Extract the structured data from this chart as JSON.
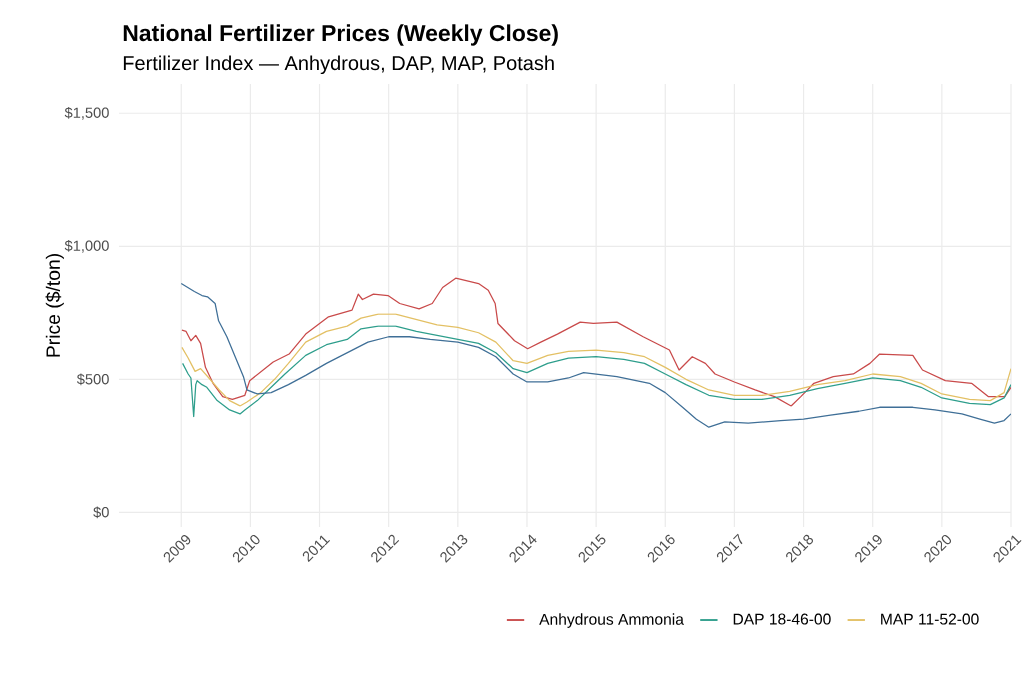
{
  "chart_data": {
    "type": "line",
    "title": "National Fertilizer Prices (Weekly Close)",
    "subtitle": "Fertilizer Index — Anhydrous, DAP, MAP, Potash",
    "ylabel": "Price ($/ton)",
    "xlim": [
      2008.1,
      2021.0
    ],
    "xticks": [
      2009,
      2010,
      2011,
      2012,
      2013,
      2014,
      2015,
      2016,
      2017,
      2018,
      2019,
      2020,
      2021
    ],
    "ylim": [
      -55,
      1610
    ],
    "yticks": [
      {
        "value": 0,
        "label": "$0"
      },
      {
        "value": 500,
        "label": "$500"
      },
      {
        "value": 1000,
        "label": "$1,000"
      },
      {
        "value": 1500,
        "label": "$1,500"
      }
    ],
    "grid": true,
    "legend": "bottom",
    "marker": "none",
    "series": [
      {
        "name": "Anhydrous Ammonia",
        "color": "#c94a4a",
        "x": [
          2009.01,
          2009.07,
          2009.14,
          2009.21,
          2009.28,
          2009.35,
          2009.46,
          2009.6,
          2009.74,
          2009.92,
          2009.99,
          2010.33,
          2010.56,
          2010.8,
          2011.13,
          2011.47,
          2011.56,
          2011.62,
          2011.78,
          2011.99,
          2012.16,
          2012.44,
          2012.63,
          2012.78,
          2012.97,
          2013.3,
          2013.44,
          2013.54,
          2013.58,
          2013.82,
          2014.01,
          2014.2,
          2014.44,
          2014.77,
          2014.96,
          2015.3,
          2015.68,
          2016.06,
          2016.2,
          2016.39,
          2016.58,
          2016.72,
          2017.0,
          2017.3,
          2017.58,
          2017.82,
          2017.96,
          2018.15,
          2018.43,
          2018.72,
          2018.96,
          2019.1,
          2019.58,
          2019.63,
          2019.72,
          2020.05,
          2020.43,
          2020.67,
          2020.91,
          2021.0
        ],
        "values": [
          685,
          680,
          645,
          665,
          635,
          545,
          485,
          435,
          425,
          440,
          495,
          565,
          595,
          670,
          735,
          760,
          820,
          800,
          820,
          815,
          785,
          765,
          785,
          845,
          880,
          860,
          835,
          785,
          710,
          645,
          615,
          640,
          670,
          715,
          710,
          715,
          660,
          610,
          535,
          585,
          560,
          520,
          490,
          460,
          435,
          400,
          435,
          485,
          510,
          520,
          560,
          595,
          590,
          570,
          535,
          495,
          485,
          435,
          435,
          470
        ]
      },
      {
        "name": "DAP 18-46-00",
        "color": "#2e9e8c",
        "x": [
          2009.02,
          2009.1,
          2009.14,
          2009.18,
          2009.21,
          2009.23,
          2009.3,
          2009.37,
          2009.52,
          2009.7,
          2009.85,
          2009.92,
          2010.1,
          2010.3,
          2010.5,
          2010.8,
          2011.1,
          2011.4,
          2011.6,
          2011.85,
          2012.1,
          2012.4,
          2012.7,
          2013.0,
          2013.3,
          2013.55,
          2013.8,
          2014.0,
          2014.3,
          2014.6,
          2015.0,
          2015.4,
          2015.7,
          2016.0,
          2016.3,
          2016.63,
          2017.0,
          2017.4,
          2017.8,
          2018.2,
          2018.6,
          2019.0,
          2019.4,
          2019.7,
          2020.0,
          2020.4,
          2020.7,
          2020.9,
          2021.0
        ],
        "values": [
          560,
          520,
          505,
          360,
          480,
          495,
          480,
          470,
          420,
          385,
          370,
          385,
          420,
          470,
          520,
          590,
          630,
          650,
          690,
          700,
          700,
          680,
          665,
          650,
          635,
          600,
          540,
          525,
          560,
          580,
          585,
          575,
          560,
          520,
          480,
          440,
          425,
          425,
          440,
          465,
          485,
          505,
          495,
          470,
          430,
          410,
          405,
          430,
          480
        ]
      },
      {
        "name": "MAP 11-52-00",
        "color": "#e3c064",
        "x": [
          2009.01,
          2009.1,
          2009.14,
          2009.2,
          2009.28,
          2009.4,
          2009.55,
          2009.7,
          2009.85,
          2009.95,
          2010.15,
          2010.35,
          2010.55,
          2010.8,
          2011.1,
          2011.4,
          2011.6,
          2011.85,
          2012.1,
          2012.4,
          2012.7,
          2013.0,
          2013.3,
          2013.55,
          2013.8,
          2014.0,
          2014.3,
          2014.6,
          2015.0,
          2015.4,
          2015.7,
          2016.0,
          2016.3,
          2016.63,
          2017.0,
          2017.4,
          2017.8,
          2018.2,
          2018.6,
          2019.0,
          2019.4,
          2019.7,
          2020.0,
          2020.4,
          2020.7,
          2020.9,
          2021.0
        ],
        "values": [
          620,
          580,
          560,
          530,
          540,
          505,
          460,
          420,
          400,
          415,
          450,
          500,
          560,
          640,
          680,
          700,
          730,
          745,
          745,
          725,
          705,
          695,
          675,
          640,
          570,
          560,
          590,
          605,
          610,
          600,
          585,
          545,
          500,
          460,
          440,
          440,
          455,
          480,
          495,
          520,
          510,
          485,
          445,
          425,
          420,
          450,
          540
        ]
      },
      {
        "color": "#3f6f97",
        "x": [
          2009.0,
          2009.19,
          2009.3,
          2009.38,
          2009.49,
          2009.54,
          2009.66,
          2009.78,
          2009.9,
          2009.95,
          2010.1,
          2010.3,
          2010.55,
          2010.8,
          2011.1,
          2011.4,
          2011.7,
          2012.0,
          2012.3,
          2012.6,
          2013.0,
          2013.3,
          2013.55,
          2013.8,
          2014.0,
          2014.3,
          2014.6,
          2014.82,
          2015.3,
          2015.77,
          2016.0,
          2016.25,
          2016.45,
          2016.63,
          2016.86,
          2017.2,
          2017.67,
          2018.0,
          2018.39,
          2018.8,
          2019.1,
          2019.58,
          2019.9,
          2020.29,
          2020.55,
          2020.76,
          2020.9,
          2021.0
        ],
        "values": [
          860,
          830,
          815,
          810,
          785,
          720,
          660,
          585,
          510,
          460,
          445,
          450,
          480,
          515,
          560,
          600,
          640,
          660,
          660,
          650,
          640,
          620,
          585,
          520,
          490,
          490,
          505,
          525,
          510,
          485,
          450,
          395,
          350,
          320,
          340,
          335,
          345,
          350,
          365,
          380,
          395,
          395,
          385,
          370,
          350,
          335,
          345,
          370
        ]
      }
    ]
  }
}
